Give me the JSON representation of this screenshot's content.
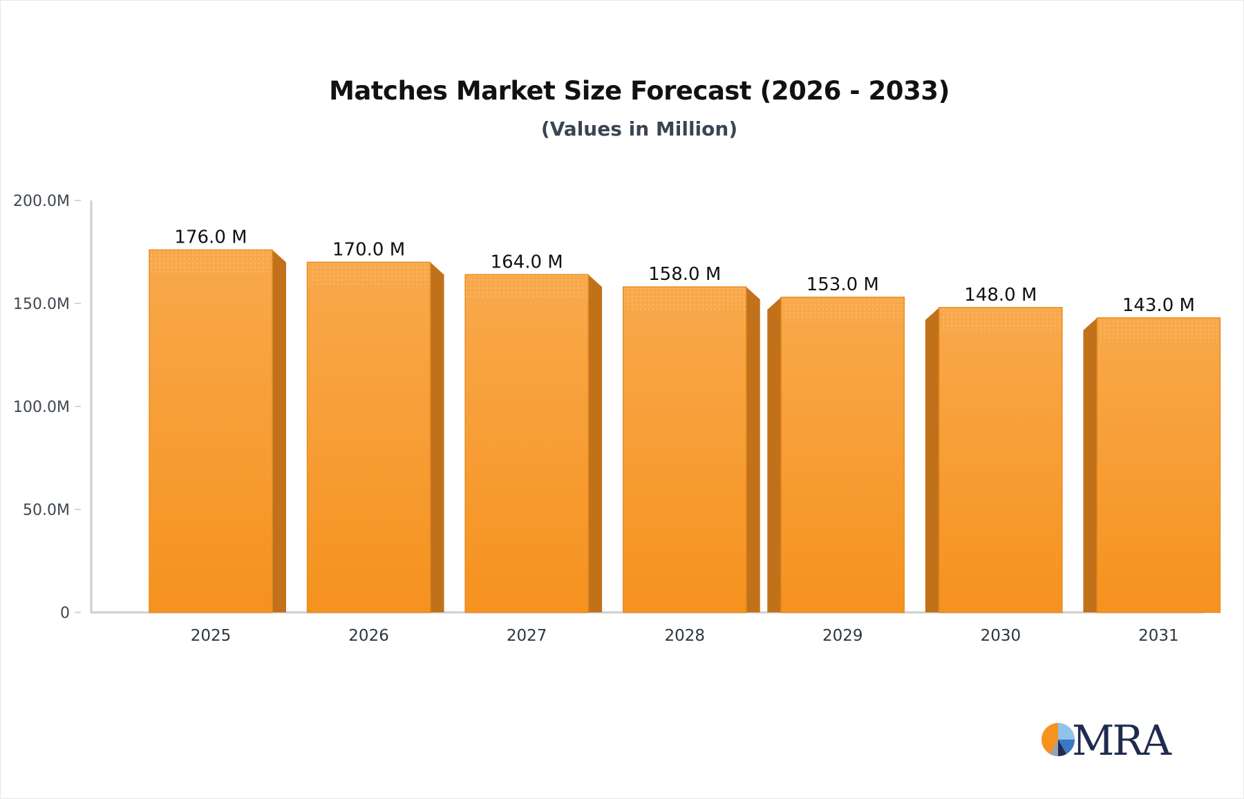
{
  "chart_data": {
    "type": "bar",
    "title": "Matches Market Size Forecast (2026 - 2033)",
    "subtitle": "(Values in Million)",
    "categories": [
      "2025",
      "2026",
      "2027",
      "2028",
      "2029",
      "2030",
      "2031"
    ],
    "values": [
      176.0,
      170.0,
      164.0,
      158.0,
      153.0,
      148.0,
      143.0
    ],
    "data_labels": [
      "176.0 M",
      "170.0 M",
      "164.0 M",
      "158.0 M",
      "153.0 M",
      "148.0 M",
      "143.0 M"
    ],
    "y_ticks": [
      0,
      50,
      100,
      150,
      200
    ],
    "y_tick_labels": [
      "0",
      "50.0M",
      "100.0M",
      "150.0M",
      "200.0M"
    ],
    "ylim": [
      0,
      200
    ],
    "xlabel": "",
    "ylabel": "",
    "grid": false,
    "legend": "none",
    "colors": {
      "bar_top": "#f8a94c",
      "bar_bottom": "#f6921e",
      "bar_side": "#c2711b",
      "bar_border": "#e88c20",
      "axis": "#cfcfcf"
    }
  },
  "logo": {
    "text": "MRA",
    "colors": {
      "orange": "#f6921e",
      "navy": "#1f2b4e",
      "blue": "#3a78c2",
      "light_blue": "#8fc3ec"
    }
  }
}
